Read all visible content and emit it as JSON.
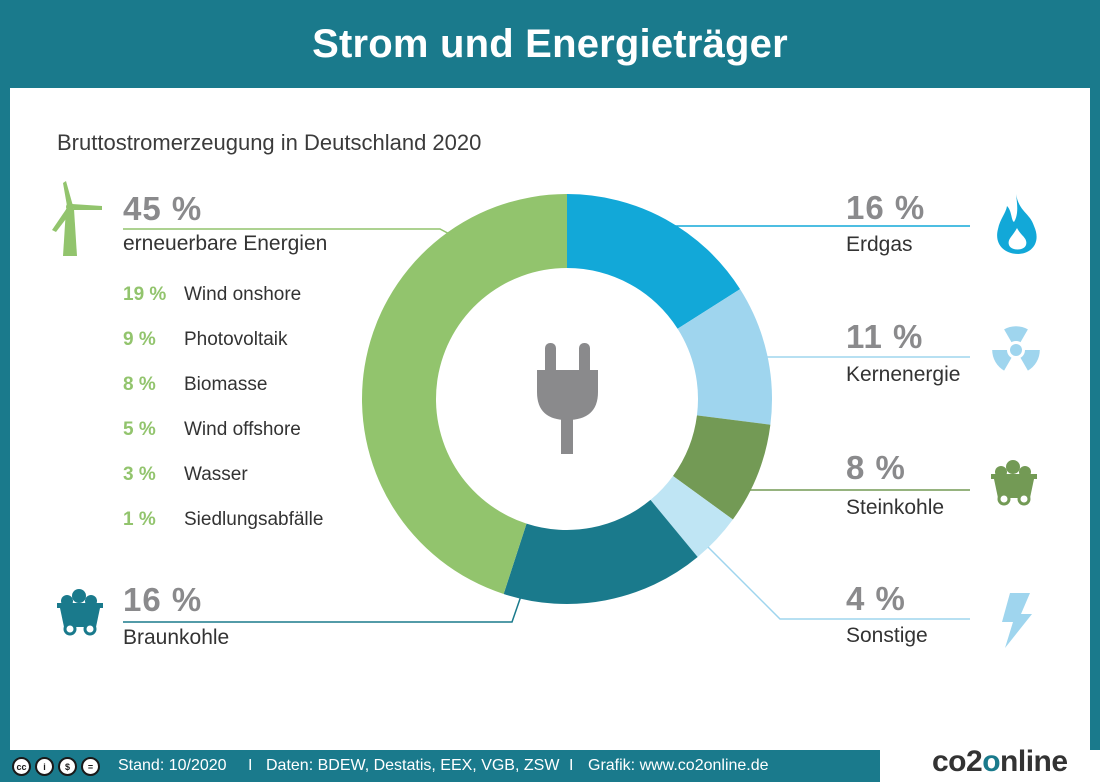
{
  "header": {
    "title": "Strom und Energieträger"
  },
  "chart_data": {
    "type": "pie",
    "title": "Bruttostromerzeugung in Deutschland 2020",
    "slices": [
      {
        "label": "Erdgas",
        "pct_label": "16 %",
        "value": 16,
        "color": "#12a8d8"
      },
      {
        "label": "Kernenergie",
        "pct_label": "11 %",
        "value": 11,
        "color": "#9fd5ee"
      },
      {
        "label": "Steinkohle",
        "pct_label": "8 %",
        "value": 8,
        "color": "#739a55"
      },
      {
        "label": "Sonstige",
        "pct_label": "4 %",
        "value": 4,
        "color": "#bfe5f4"
      },
      {
        "label": "Braunkohle",
        "pct_label": "16 %",
        "value": 16,
        "color": "#1a7a8c"
      },
      {
        "label": "erneuerbare Energien",
        "pct_label": "45 %",
        "value": 45,
        "color": "#92c46d"
      }
    ],
    "renewables_breakdown": [
      {
        "pct": "19 %",
        "label": "Wind onshore",
        "value": 19
      },
      {
        "pct": "9 %",
        "label": "Photovoltaik",
        "value": 9
      },
      {
        "pct": "8 %",
        "label": "Biomasse",
        "value": 8
      },
      {
        "pct": "5 %",
        "label": "Wind offshore",
        "value": 5
      },
      {
        "pct": "3 %",
        "label": "Wasser",
        "value": 3
      },
      {
        "pct": "1 %",
        "label": "Siedlungsabfälle",
        "value": 1
      }
    ]
  },
  "icons": {
    "renewables": "wind-turbine-icon",
    "erdgas": "flame-icon",
    "kernenergie": "radiation-icon",
    "steinkohle": "coal-cart-icon",
    "sonstige": "lightning-icon",
    "braunkohle": "coal-cart-icon",
    "center": "plug-icon"
  },
  "footer": {
    "license_badges": [
      "cc",
      "i",
      "$",
      "="
    ],
    "stand": "Stand: 10/2020",
    "daten": "Daten: BDEW, Destatis, EEX, VGB, ZSW",
    "grafik": "Grafik: www.co2online.de",
    "separator": "I",
    "brand_prefix": "co2",
    "brand_o": "o",
    "brand_suffix": "nline"
  }
}
